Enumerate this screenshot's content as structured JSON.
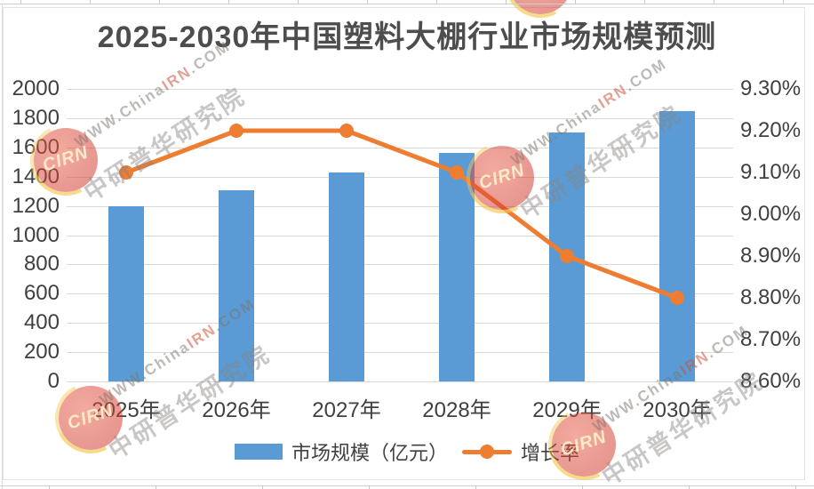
{
  "title": "2025-2030年中国塑料大棚行业市场规模预测",
  "chart_data": {
    "type": "combo-bar-line",
    "categories": [
      "2025年",
      "2026年",
      "2027年",
      "2028年",
      "2029年",
      "2030年"
    ],
    "series": [
      {
        "name": "市场规模（亿元）",
        "type": "bar",
        "axis": "left",
        "color": "#5B9BD5",
        "values": [
          1200,
          1310,
          1430,
          1560,
          1700,
          1850
        ]
      },
      {
        "name": "增长率",
        "type": "line",
        "axis": "right",
        "color": "#ED7D31",
        "unit": "%",
        "values": [
          9.1,
          9.2,
          9.2,
          9.1,
          8.9,
          8.8
        ]
      }
    ],
    "left_axis": {
      "min": 0,
      "max": 2000,
      "step": 200,
      "ticks": [
        "2000",
        "1800",
        "1600",
        "1400",
        "1200",
        "1000",
        "800",
        "600",
        "400",
        "200",
        "0"
      ]
    },
    "right_axis": {
      "min": 8.6,
      "max": 9.3,
      "step": 0.1,
      "ticks": [
        "9.30%",
        "9.20%",
        "9.10%",
        "9.00%",
        "8.90%",
        "8.80%",
        "8.70%",
        "8.60%"
      ]
    },
    "legend": {
      "position": "bottom",
      "items": [
        "市场规模（亿元）",
        "增长率"
      ]
    },
    "grid": true
  },
  "colors": {
    "bar": "#5B9BD5",
    "line": "#ED7D31",
    "gridline": "#D9D9D9",
    "axis_text": "#404040",
    "title_text": "#4d4d4d"
  },
  "watermark": {
    "url_pre": "WWW.China",
    "url_mid": "IRN",
    "url_post": ".COM",
    "cn_name": "中研普华研究院",
    "logo_text": "CIRN"
  }
}
